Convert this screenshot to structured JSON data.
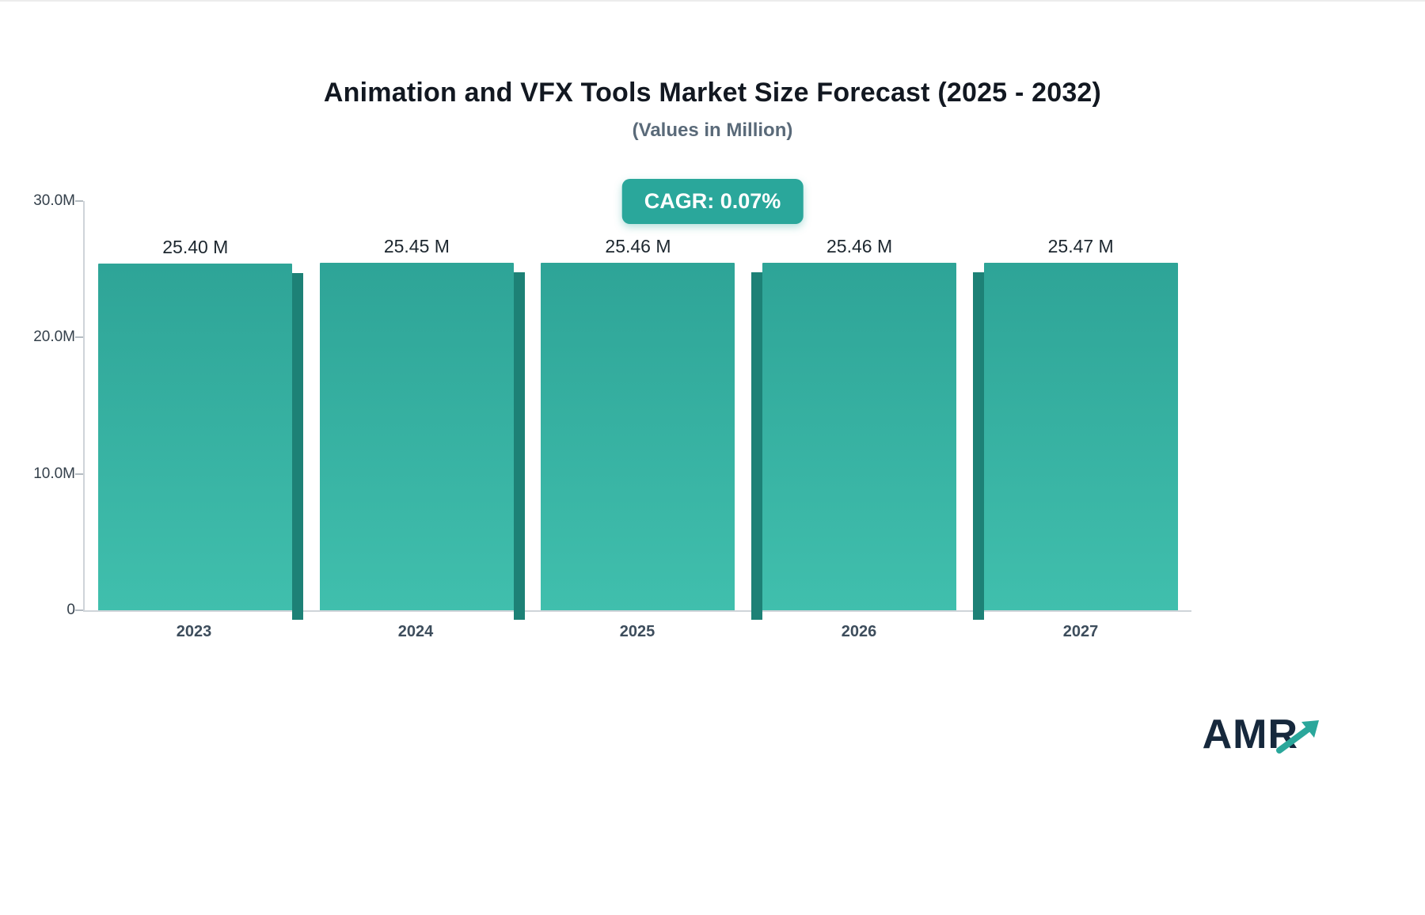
{
  "header": {
    "title": "Animation and VFX Tools Market Size Forecast (2025 - 2032)",
    "subtitle": "(Values in Million)"
  },
  "badge": {
    "label": "CAGR: 0.07%",
    "color": "#2aa79b"
  },
  "chart_data": {
    "type": "bar",
    "title": "Animation and VFX Tools Market Size Forecast (2025 - 2032)",
    "subtitle": "(Values in Million)",
    "categories": [
      "2023",
      "2024",
      "2025",
      "2026",
      "2027"
    ],
    "values": [
      25.4,
      25.45,
      25.46,
      25.46,
      25.47
    ],
    "value_labels": [
      "25.40 M",
      "25.45 M",
      "25.46 M",
      "25.46 M",
      "25.47 M"
    ],
    "xlabel": "",
    "ylabel": "",
    "ylim": [
      0,
      30
    ],
    "yticks": [
      {
        "value": 30,
        "label": "30.0M"
      },
      {
        "value": 20,
        "label": "20.0M"
      },
      {
        "value": 10,
        "label": "10.0M"
      },
      {
        "value": 0,
        "label": "0"
      }
    ],
    "grid": false,
    "legend": false,
    "colors": {
      "bar_top": "#2ea497",
      "bar_bottom": "#40bfad",
      "bar_side": "#1d8176",
      "axis": "#cfd4d9"
    }
  },
  "logo": {
    "text": "AMR",
    "arrow_color": "#2aa79b",
    "text_color": "#16283c"
  }
}
